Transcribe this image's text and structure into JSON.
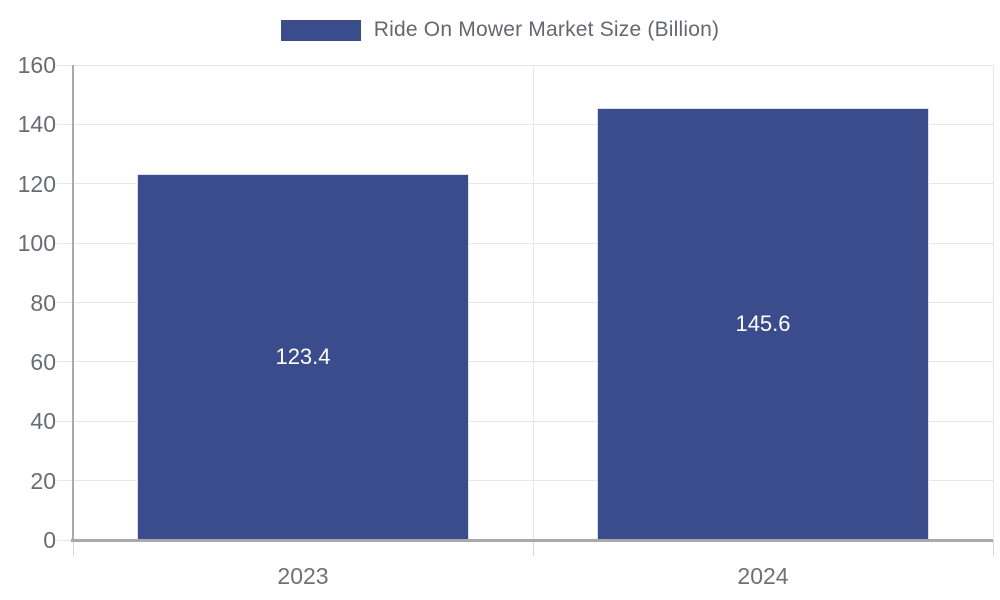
{
  "chart_data": {
    "type": "bar",
    "title": "Ride On Mower Market Size (Billion)",
    "legend": {
      "position": "top",
      "label": "Ride On Mower Market Size (Billion)"
    },
    "categories": [
      "2023",
      "2024"
    ],
    "series": [
      {
        "name": "Ride On Mower Market Size (Billion)",
        "values": [
          123.4,
          145.6
        ]
      }
    ],
    "data_labels": [
      "123.4",
      "145.6"
    ],
    "xlabel": "",
    "ylabel": "",
    "ylim": [
      0,
      160
    ],
    "yticks": [
      0,
      20,
      40,
      60,
      80,
      100,
      120,
      140,
      160
    ],
    "grid": {
      "horizontal": true,
      "vertical_category_boundaries": true
    },
    "colors": {
      "bar": "#3a4c8b",
      "bar_border": "#dcdfeb",
      "axis_line": "#a9a9a9",
      "gridline": "#e7e7e7",
      "tick_stub": "#d6d6d6",
      "tick_text": "#696d72",
      "legend_text": "#64686e",
      "data_label_text": "#ffffff"
    }
  }
}
